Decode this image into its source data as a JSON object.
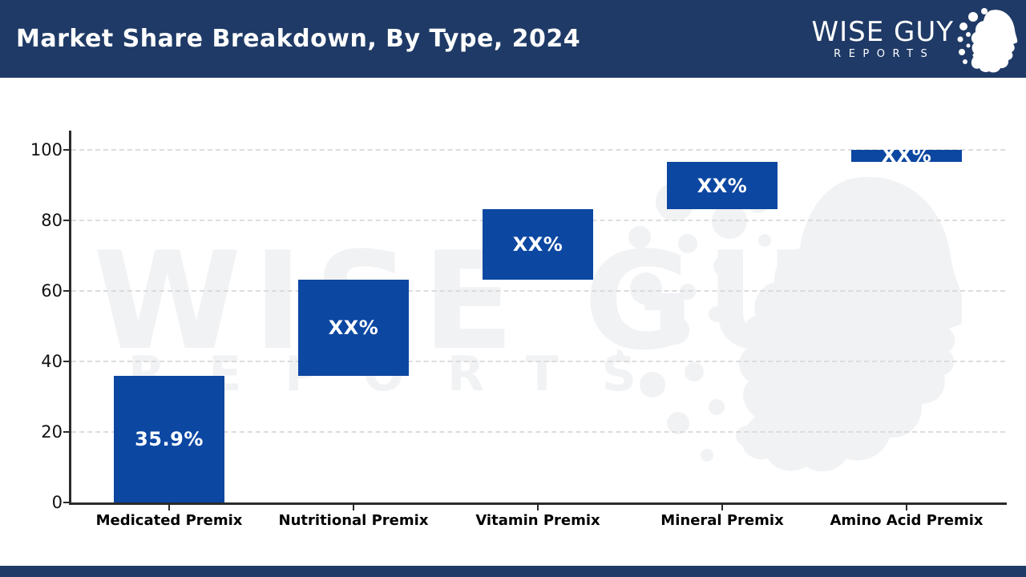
{
  "header": {
    "title": "Market Share Breakdown, By Type, 2024",
    "logo_line1": "WISE GUY",
    "logo_line2": "REPORTS"
  },
  "watermark": {
    "line1": "WISE GUY",
    "line2": "REPORTS"
  },
  "colors": {
    "header_bg": "#1f3a66",
    "footer_bg": "#1f3a66",
    "bar": "#0c47a1",
    "bar_label_text": "#ffffff",
    "watermark": "#f1f2f4",
    "grid": "#dcdcdc",
    "axis": "#2b2b2b"
  },
  "chart_data": {
    "type": "bar",
    "variant": "waterfall (floating cumulative segments, no connectors)",
    "title": "Market Share Breakdown, By Type, 2024",
    "categories": [
      "Medicated Premix",
      "Nutritional Premix",
      "Vitamin Premix",
      "Mineral Premix",
      "Amino Acid Premix"
    ],
    "segments": [
      {
        "category": "Medicated Premix",
        "start": 0,
        "end": 35.9,
        "label": "35.9%"
      },
      {
        "category": "Nutritional Premix",
        "start": 35.9,
        "end": 63.0,
        "label": "XX%"
      },
      {
        "category": "Vitamin Premix",
        "start": 63.0,
        "end": 83.0,
        "label": "XX%"
      },
      {
        "category": "Mineral Premix",
        "start": 83.0,
        "end": 96.5,
        "label": "XX%"
      },
      {
        "category": "Amino Acid Premix",
        "start": 96.5,
        "end": 100.0,
        "label": "XX%"
      }
    ],
    "segment_sizes_estimated_pct": [
      35.9,
      27.1,
      20.0,
      13.5,
      3.5
    ],
    "xlabel": "",
    "ylabel": "",
    "yticks": [
      0,
      20,
      40,
      60,
      80,
      100
    ],
    "ylim": [
      0,
      105
    ],
    "grid": "horizontal dashed",
    "legend": "none"
  }
}
